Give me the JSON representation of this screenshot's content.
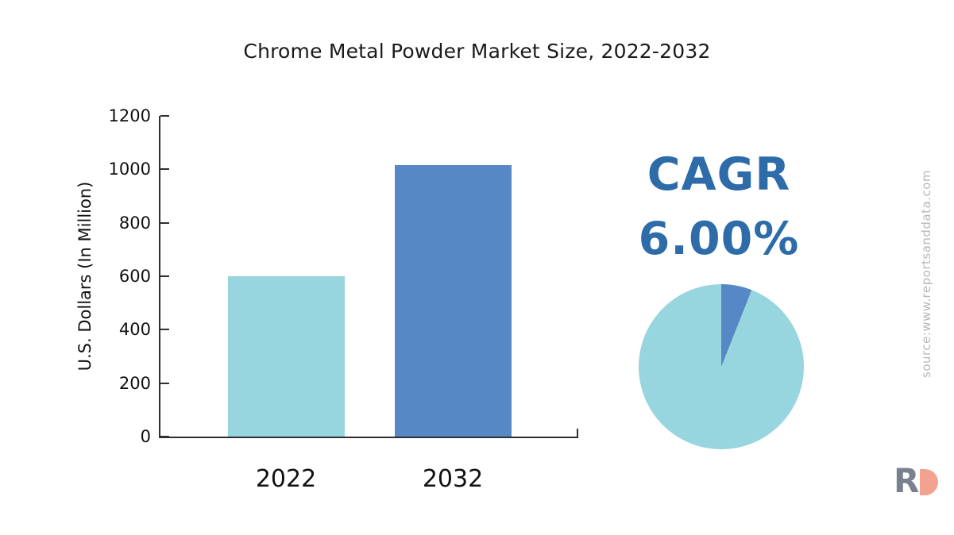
{
  "chart_data": [
    {
      "type": "bar",
      "title": "Chrome Metal Powder Market Size, 2022-2032",
      "categories": [
        "2022",
        "2032"
      ],
      "values": [
        600,
        1015
      ],
      "bar_colors": [
        "#97d5df",
        "#5588c5"
      ],
      "xlabel": "",
      "ylabel": "U.S. Dollars (In Million)",
      "ylim": [
        0,
        1200
      ],
      "yticks": [
        0,
        200,
        400,
        600,
        800,
        1000,
        1200
      ],
      "grid": false,
      "legend": false
    },
    {
      "type": "pie",
      "values": [
        6,
        94
      ],
      "colors": [
        "#5588c5",
        "#97d5df"
      ],
      "start_angle_deg": 0,
      "direction": "clockwise",
      "legend": false
    }
  ],
  "cagr_callout": {
    "label": "CAGR",
    "value": "6.00%",
    "color": "#2d6ca8"
  },
  "source": {
    "text": "source:www.reportsanddata.com",
    "color": "#b8b8b8"
  },
  "logo": {
    "letter_r": "R",
    "r_color": "#78818d",
    "d_color": "#f2a28f"
  }
}
